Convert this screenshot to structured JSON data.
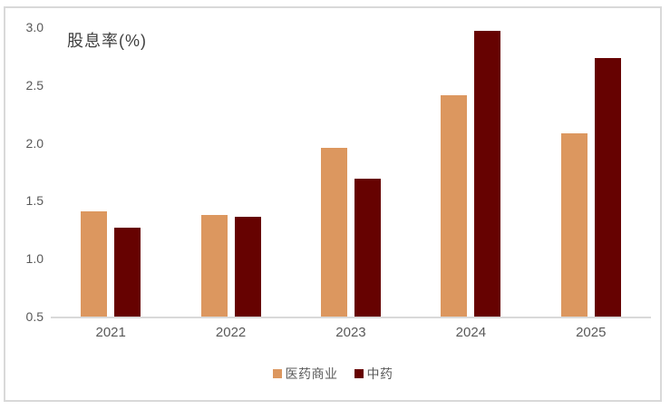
{
  "chart_data": {
    "type": "bar",
    "title": "股息率(%)",
    "categories": [
      "2021",
      "2022",
      "2023",
      "2024",
      "2025"
    ],
    "series": [
      {
        "name": "医药商业",
        "color": "#DC975F",
        "values": [
          1.41,
          1.38,
          1.96,
          2.41,
          2.08
        ]
      },
      {
        "name": "中药",
        "color": "#660201",
        "values": [
          1.27,
          1.36,
          1.69,
          2.97,
          2.73
        ]
      }
    ],
    "ylim": [
      0.5,
      3.0
    ],
    "yticks": [
      "0.5",
      "1.0",
      "1.5",
      "2.0",
      "2.5",
      "3.0"
    ],
    "grid": false,
    "legend_position": "bottom",
    "colors": {
      "axis_line": "#d9d9d9",
      "tick_text": "#595959",
      "title_text": "#3f3f3f",
      "frame_border": "#d9d9d9"
    }
  }
}
